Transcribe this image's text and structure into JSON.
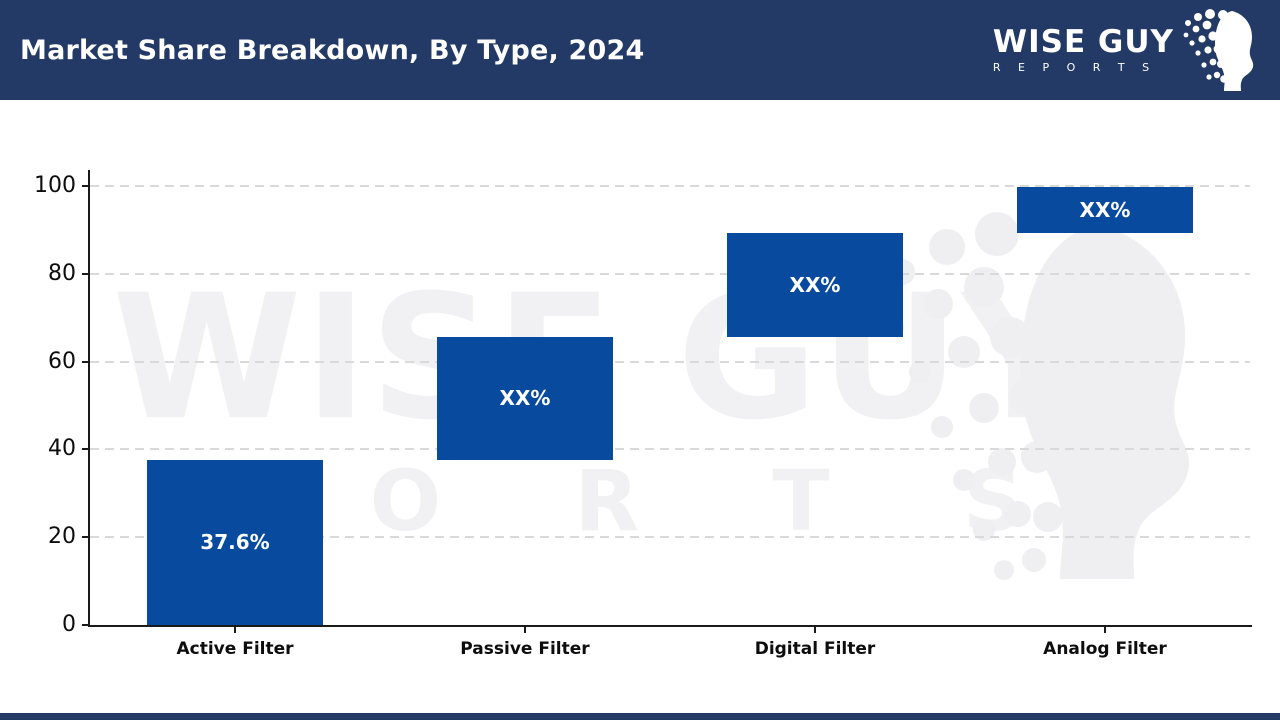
{
  "header": {
    "title": "Market Share Breakdown, By Type, 2024",
    "brand": {
      "wordmark": "WISE GUY",
      "sub": "R E P O R T S"
    }
  },
  "watermark": {
    "line1": "WISE GUY",
    "line2": "P O R T S"
  },
  "chart_data": {
    "type": "bar",
    "subtype": "waterfall-floating-segments",
    "title": "Market Share Breakdown, By Type, 2024",
    "categories": [
      "Active Filter",
      "Passive Filter",
      "Digital Filter",
      "Analog Filter"
    ],
    "bars": [
      {
        "category": "Active Filter",
        "start": 0,
        "end": 37.6,
        "label": "37.6%"
      },
      {
        "category": "Passive Filter",
        "start": 37.6,
        "end": 65.6,
        "label": "XX%"
      },
      {
        "category": "Digital Filter",
        "start": 65.6,
        "end": 89.3,
        "label": "XX%"
      },
      {
        "category": "Analog Filter",
        "start": 89.3,
        "end": 99.8,
        "label": "XX%"
      }
    ],
    "xlabel": "",
    "ylabel": "",
    "ylim": [
      0,
      100
    ],
    "yticks": [
      0,
      20,
      40,
      60,
      80,
      100
    ],
    "grid": "horizontal-dashed",
    "legend": "none",
    "bar_color": "#084a9e"
  },
  "colors": {
    "header_bg": "#233a66",
    "footer_bg": "#233a66",
    "bar": "#084a9e",
    "grid": "#d9d9d9",
    "axis": "#1a1a1a",
    "watermark": "#f1f1f4"
  }
}
